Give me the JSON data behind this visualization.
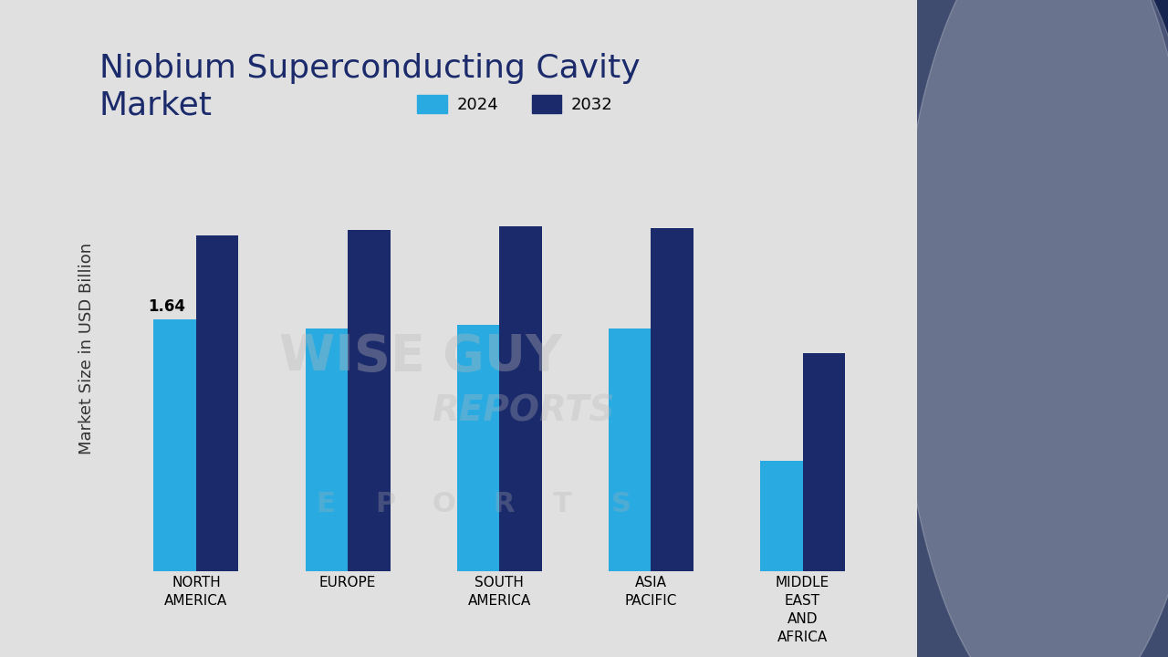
{
  "title": "Niobium Superconducting Cavity\nMarket",
  "ylabel": "Market Size in USD Billion",
  "categories": [
    "NORTH\nAMERICA",
    "EUROPE",
    "SOUTH\nAMERICA",
    "ASIA\nPACIFIC",
    "MIDDLE\nEAST\nAND\nAFRICA"
  ],
  "values_2024": [
    1.64,
    1.58,
    1.6,
    1.58,
    0.72
  ],
  "values_2032": [
    2.18,
    2.22,
    2.24,
    2.23,
    1.42
  ],
  "color_2024": "#29ABE2",
  "color_2032": "#1B2A6B",
  "annotation_text": "1.64",
  "annotation_bar": 0,
  "background_color": "#E0E0E0",
  "right_panel_color": "#162550",
  "title_color": "#1B2A6B",
  "ylabel_color": "#333333",
  "legend_labels": [
    "2024",
    "2032"
  ],
  "bar_width": 0.28,
  "title_fontsize": 26,
  "ylabel_fontsize": 13,
  "tick_fontsize": 11,
  "legend_fontsize": 13,
  "annotation_fontsize": 12,
  "ylim": [
    0,
    2.9
  ]
}
